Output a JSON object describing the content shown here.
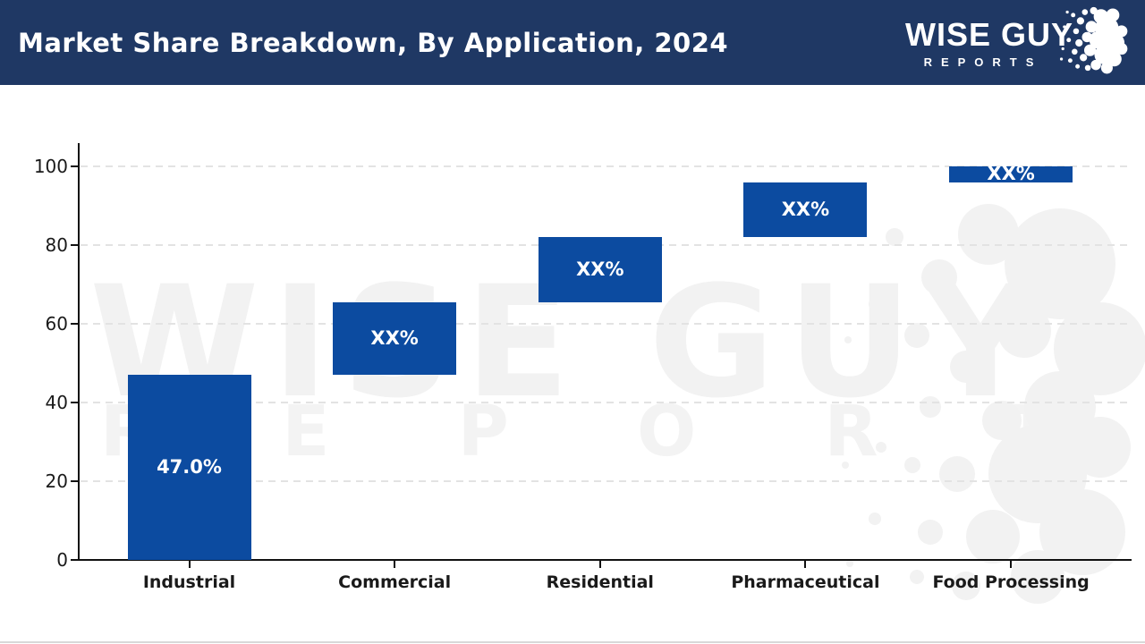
{
  "header": {
    "title": "Market Share Breakdown, By Application, 2024",
    "bg_color": "#1f3864",
    "logo": {
      "line1": "WISE GUY",
      "line2": "REPORTS",
      "head_icon": "dotted-head-profile"
    }
  },
  "watermark": {
    "line1": "WISE GUY",
    "line2": "R E P O R T S"
  },
  "chart_data": {
    "type": "bar",
    "subtype": "waterfall",
    "title": "Market Share Breakdown, By Application, 2024",
    "xlabel": "",
    "ylabel": "",
    "ylim": [
      0,
      105
    ],
    "yticks": [
      0,
      20,
      40,
      60,
      80,
      100
    ],
    "grid": "horizontal-dashed",
    "legend": "none",
    "bar_color": "#0c4ba0",
    "label_color": "#ffffff",
    "categories": [
      "Industrial",
      "Commercial",
      "Residential",
      "Pharmaceutical",
      "Food Processing"
    ],
    "segments": [
      {
        "category": "Industrial",
        "start": 0,
        "end": 47,
        "label": "47.0%"
      },
      {
        "category": "Commercial",
        "start": 47,
        "end": 65.5,
        "label": "XX%"
      },
      {
        "category": "Residential",
        "start": 65.5,
        "end": 82,
        "label": "XX%"
      },
      {
        "category": "Pharmaceutical",
        "start": 82,
        "end": 96,
        "label": "XX%"
      },
      {
        "category": "Food Processing",
        "start": 96,
        "end": 100,
        "label": "XX%"
      }
    ]
  }
}
